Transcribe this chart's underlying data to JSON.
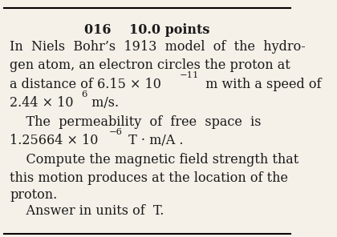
{
  "title": "016    10.0 points",
  "bg_color": "#f5f0e8",
  "text_color": "#1a1a1a",
  "line1": "In  Niels  Bohr’s  1913  model  of  the  hydro-",
  "line2": "gen atom, an electron circles the proton at",
  "line3": "a distance of 6.15 × 10",
  "line3_sup": "−11",
  "line3_end": " m with a speed of",
  "line4": "2.44 × 10",
  "line4_sup": "6",
  "line4_end": " m/s.",
  "line5": "    The  permeability  of  free  space  is",
  "line6": "1.25664 × 10",
  "line6_sup": "−6",
  "line6_end": " T · m/A .",
  "line7": "    Compute the magnetic field strength that",
  "line8": "this motion produces at the location of the",
  "line9": "proton.",
  "line10": "    Answer in units of  T.",
  "font_size_title": 11.5,
  "font_size_body": 11.5
}
